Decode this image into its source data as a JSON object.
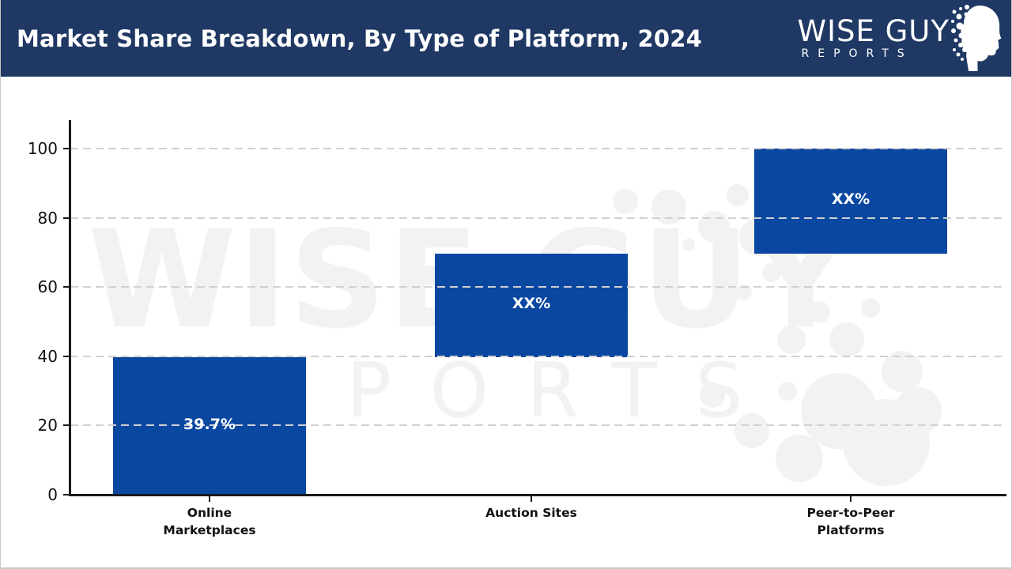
{
  "header": {
    "title": "Market Share Breakdown, By Type of Platform, 2024",
    "logo": {
      "line1": "WISE GUY",
      "line2": "REPORTS"
    }
  },
  "watermark": {
    "line1": "WISE GUY",
    "line2": "REPORTS"
  },
  "colors": {
    "header_bg": "#1f3864",
    "bar": "#0a47a1",
    "grid": "#d1d1d1",
    "axis": "#1a1a1a",
    "watermark": "#f2f2f2",
    "bar_label_text": "#ffffff"
  },
  "chart_data": {
    "type": "bar",
    "subtype": "waterfall",
    "title": "Market Share Breakdown, By Type of Platform, 2024",
    "categories": [
      "Online Marketplaces",
      "Auction Sites",
      "Peer-to-Peer Platforms"
    ],
    "series": [
      {
        "name": "Market share (%)",
        "values": [
          {
            "category": "Online Marketplaces",
            "start": 0,
            "end": 39.7,
            "label": "39.7%"
          },
          {
            "category": "Auction Sites",
            "start": 39.7,
            "end": 69.7,
            "label": "XX%"
          },
          {
            "category": "Peer-to-Peer Platforms",
            "start": 69.7,
            "end": 100,
            "label": "XX%"
          }
        ]
      }
    ],
    "xlabel": "",
    "ylabel": "",
    "ylim": [
      0,
      100
    ],
    "yticks": [
      0,
      20,
      40,
      60,
      80,
      100
    ],
    "grid": "horizontal-dashed-above-bars",
    "legend": "none"
  }
}
